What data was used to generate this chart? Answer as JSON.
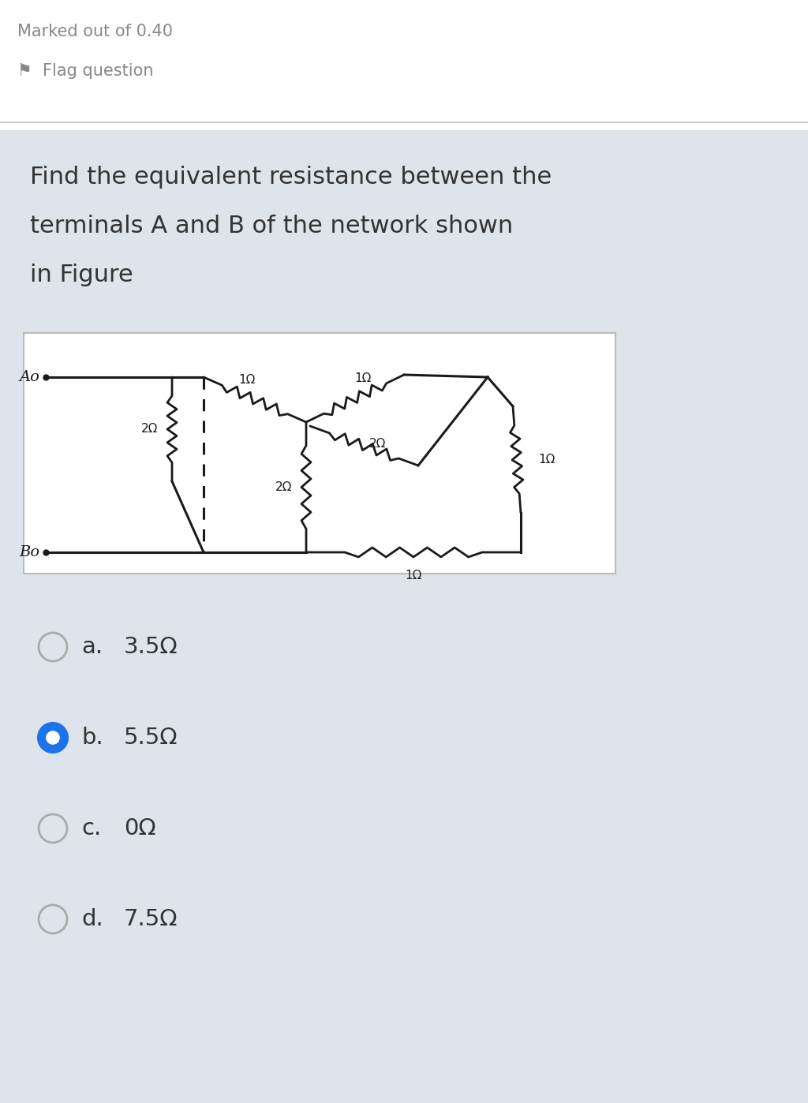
{
  "title_top1": "Marked out of 0.40",
  "title_top2": "Flag question",
  "question_lines": [
    "Find the equivalent resistance between the",
    "terminals A and B of the network shown",
    "in Figure"
  ],
  "options": [
    {
      "label": "a.",
      "text": "3.5Ω",
      "selected": false
    },
    {
      "label": "b.",
      "text": "5.5Ω",
      "selected": true
    },
    {
      "label": "c.",
      "text": "0Ω",
      "selected": false
    },
    {
      "label": "d.",
      "text": "7.5Ω",
      "selected": false
    }
  ],
  "bg_white": "#ffffff",
  "bg_light": "#dde4ec",
  "text_dark": "#333333",
  "text_gray": "#888888",
  "selected_color": "#1a73e8",
  "circuit_bg": "#ffffff",
  "circuit_line": "#1a1a1a",
  "separator_color": "#cccccc"
}
